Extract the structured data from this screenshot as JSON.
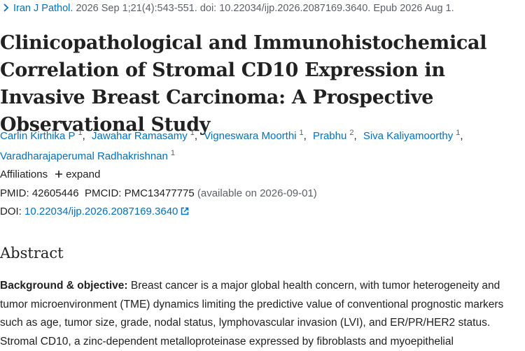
{
  "citation": {
    "journal": "Iran J Pathol.",
    "details": "2026 Sep 1;21(4):543-551. doi: 10.22034/ijp.2026.2087169.3640. Epub 2026 Aug 1."
  },
  "title": "Clinicopathological and Immunohistochemical Correlation of Stromal CD10 Expression in Invasive Breast Carcinoma: A Prospective Observational Study",
  "authors": [
    {
      "name": "Carlin Kirthika P",
      "affiliation": 1
    },
    {
      "name": "Jawahar Ramasamy",
      "affiliation": 1
    },
    {
      "name": "Vigneswara Moorthi",
      "affiliation": 1
    },
    {
      "name": "Prabhu",
      "affiliation": 2
    },
    {
      "name": "Siva Kaliyamoorthy",
      "affiliation": 1
    },
    {
      "name": "Varadharajaperumal Radhakrishnan",
      "affiliation": 1
    }
  ],
  "affiliations": {
    "label": "Affiliations",
    "action": "expand"
  },
  "identifiers": {
    "pmid_label": "PMID:",
    "pmid": "42605446",
    "pmcid_label": "PMCID:",
    "pmcid": "PMC13477775",
    "availability": "(available on 2026-09-01)",
    "doi_label": "DOI:",
    "doi": "10.22034/ijp.2026.2087169.3640"
  },
  "abstract": {
    "heading": "Abstract",
    "sections": [
      {
        "label": "Background & objective:",
        "text": "Breast cancer is a major global health concern, with tumor heterogeneity and tumor microenvironment (TME) dynamics limiting the predictive value of conventional prognostic markers such as age, tumor size, grade, nodal status, lymphovascular invasion (LVI), and ER/PR/HER2 status. Stromal CD10, a zinc-dependent metalloproteinase expressed by fibroblasts and myoepithelial"
      }
    ]
  }
}
